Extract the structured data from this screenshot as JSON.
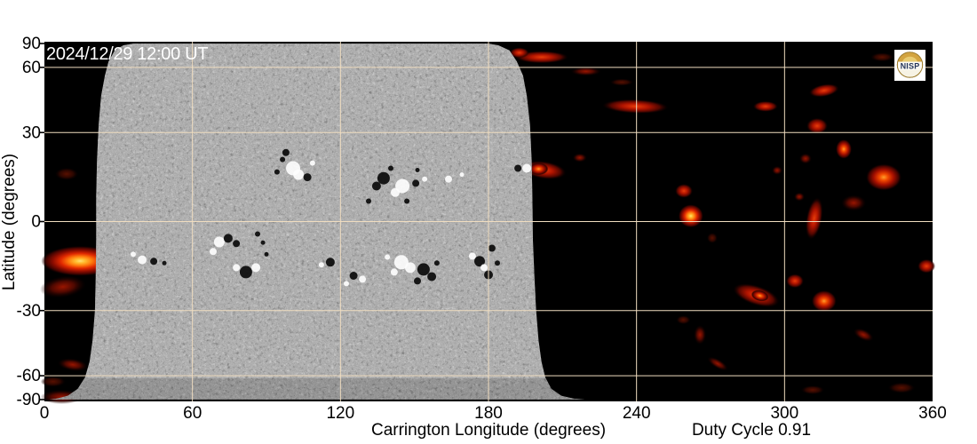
{
  "chart_data": {
    "type": "heatmap",
    "title": "2024/12/29 12:00 UT",
    "xlabel": "Carrington Longitude (degrees)",
    "ylabel": "Latitude (degrees)",
    "duty_cycle_label": "Duty Cycle 0.91",
    "xlim": [
      0,
      360
    ],
    "ylim": [
      -90,
      90
    ],
    "y_scale": "sine-latitude",
    "x_ticks": [
      0,
      60,
      120,
      180,
      240,
      300,
      360
    ],
    "y_ticks": [
      90,
      60,
      30,
      0,
      -30,
      -60,
      -90
    ],
    "x_gridlines": [
      60,
      120,
      180,
      240,
      300
    ],
    "y_gridlines": [
      60,
      30,
      0,
      -30,
      -60
    ],
    "grid_on": true,
    "legend": "none",
    "colors": {
      "grid": "#f0ddc0",
      "farside_bg": "#000000",
      "nearside_gray": "#9b9b9b",
      "text": "#000000",
      "title_text": "#ffffff",
      "hot_core": "#ffd24d",
      "hot_mid": "#e02800",
      "hot_edge": "#3c0300"
    },
    "logo": {
      "text": "NISP"
    },
    "nearside_mask": [
      [
        36,
        88
      ],
      [
        32,
        82
      ],
      [
        28.5,
        74
      ],
      [
        26,
        64
      ],
      [
        24.5,
        55
      ],
      [
        23,
        45
      ],
      [
        22,
        33
      ],
      [
        21.3,
        20
      ],
      [
        21,
        8
      ],
      [
        21,
        -6
      ],
      [
        20.8,
        -18
      ],
      [
        20.5,
        -30
      ],
      [
        19.5,
        -42
      ],
      [
        18.3,
        -52
      ],
      [
        16.5,
        -61
      ],
      [
        13.5,
        -70
      ],
      [
        9.5,
        -78
      ],
      [
        5,
        -84
      ],
      [
        2,
        -88
      ],
      [
        219,
        -88
      ],
      [
        214.5,
        -84
      ],
      [
        209.5,
        -78
      ],
      [
        205.5,
        -70
      ],
      [
        203,
        -61
      ],
      [
        201.5,
        -52
      ],
      [
        200.3,
        -42
      ],
      [
        199.3,
        -30
      ],
      [
        198.6,
        -18
      ],
      [
        198,
        -6
      ],
      [
        197.8,
        8
      ],
      [
        197.5,
        20
      ],
      [
        196.8,
        33
      ],
      [
        195.5,
        45
      ],
      [
        194,
        55
      ],
      [
        191.5,
        64
      ],
      [
        188.5,
        74
      ],
      [
        184,
        82
      ],
      [
        180,
        88
      ]
    ],
    "farside_hotspots": [
      [
        14.5,
        -12.8,
        44,
        17,
        0,
        "bright"
      ],
      [
        7.5,
        -21.5,
        26,
        12,
        -8,
        "dim"
      ],
      [
        9,
        15.5,
        13,
        7,
        0,
        "vdim"
      ],
      [
        11.5,
        -53.5,
        17,
        7,
        8,
        "dim"
      ],
      [
        7,
        -80,
        24,
        8,
        0,
        "dim"
      ],
      [
        3.5,
        -64,
        14,
        6,
        0,
        "vdim"
      ],
      [
        201.5,
        67.5,
        30,
        7,
        0,
        "med"
      ],
      [
        192.5,
        71.5,
        11,
        6,
        0,
        "med"
      ],
      [
        219.5,
        57.5,
        17,
        5,
        0,
        "dim"
      ],
      [
        234,
        51.5,
        13,
        4,
        0,
        "vdim"
      ],
      [
        239.5,
        40.3,
        37,
        8,
        2,
        "med"
      ],
      [
        217,
        21,
        8,
        5,
        0,
        "dim"
      ],
      [
        202.5,
        16.8,
        25,
        10,
        8,
        "med"
      ],
      [
        200.3,
        17.2,
        11,
        7,
        0,
        "bright2"
      ],
      [
        297,
        16.7,
        6,
        5,
        0,
        "dim"
      ],
      [
        292.3,
        40.3,
        14,
        6,
        0,
        "med"
      ],
      [
        316,
        47.4,
        17,
        7,
        -10,
        "med"
      ],
      [
        313.2,
        32.5,
        12,
        9,
        0,
        "med"
      ],
      [
        324,
        24,
        9,
        11,
        0,
        "bright2"
      ],
      [
        308.5,
        20.7,
        7,
        6,
        0,
        "dim"
      ],
      [
        340.2,
        14.4,
        20,
        15,
        0,
        "bright2"
      ],
      [
        328,
        6,
        14,
        9,
        0,
        "dim"
      ],
      [
        339.5,
        67.5,
        13,
        5,
        0,
        "vdim"
      ],
      [
        259.2,
        9.9,
        10,
        8,
        0,
        "med"
      ],
      [
        262,
        1.8,
        14,
        13,
        0,
        "bright"
      ],
      [
        270.7,
        -5.3,
        6,
        6,
        0,
        "vdim"
      ],
      [
        312,
        1,
        9,
        24,
        10,
        "med"
      ],
      [
        306,
        8,
        6,
        5,
        0,
        "dim"
      ],
      [
        288.5,
        -24.5,
        27,
        11,
        18,
        "med"
      ],
      [
        290,
        -24.6,
        10,
        6,
        14,
        "bright2"
      ],
      [
        304.2,
        -19.5,
        10,
        8,
        0,
        "med"
      ],
      [
        316,
        -26.5,
        14,
        12,
        0,
        "bright2"
      ],
      [
        357.5,
        -14.5,
        10,
        8,
        0,
        "med"
      ],
      [
        265.7,
        -39.5,
        7,
        11,
        0,
        "dim"
      ],
      [
        272.9,
        -53,
        13,
        5,
        30,
        "dim"
      ],
      [
        332,
        -39.5,
        12,
        6,
        25,
        "dim"
      ],
      [
        311.4,
        -71,
        13,
        5,
        0,
        "vdim"
      ],
      [
        347.4,
        -69,
        15,
        6,
        0,
        "vdim"
      ],
      [
        259,
        -33.5,
        8,
        5,
        0,
        "vdim"
      ]
    ],
    "magnetogram_regions": [
      [
        100.8,
        17.4,
        8,
        "w"
      ],
      [
        103,
        15.3,
        6,
        "w"
      ],
      [
        97.9,
        22.8,
        4,
        "b"
      ],
      [
        96.5,
        20.4,
        3,
        "b"
      ],
      [
        106.6,
        14.4,
        4.5,
        "b"
      ],
      [
        94.3,
        16.2,
        3,
        "b"
      ],
      [
        108.7,
        19.2,
        3,
        "w"
      ],
      [
        137.5,
        14.1,
        7,
        "b"
      ],
      [
        134.6,
        11.5,
        5,
        "b"
      ],
      [
        145.1,
        11.5,
        8,
        "w"
      ],
      [
        142.2,
        9.4,
        5,
        "w"
      ],
      [
        150.5,
        12.4,
        4,
        "b"
      ],
      [
        140.4,
        17.4,
        3,
        "b"
      ],
      [
        146.9,
        6.6,
        3,
        "b"
      ],
      [
        131.4,
        6.6,
        3,
        "b"
      ],
      [
        151.2,
        16.8,
        2.5,
        "b"
      ],
      [
        154.1,
        13.8,
        3,
        "w"
      ],
      [
        191.9,
        17.4,
        4,
        "b"
      ],
      [
        195.5,
        17.4,
        5,
        "w"
      ],
      [
        163.8,
        13.8,
        4,
        "w"
      ],
      [
        169.2,
        15.3,
        2.5,
        "w"
      ],
      [
        39.6,
        -12.4,
        5,
        "w"
      ],
      [
        44.3,
        -12.9,
        4,
        "b"
      ],
      [
        48.6,
        -13.5,
        2.5,
        "b"
      ],
      [
        36,
        -10.6,
        3,
        "w"
      ],
      [
        70.9,
        -6.6,
        6,
        "w"
      ],
      [
        74.5,
        -5.4,
        5,
        "b"
      ],
      [
        77.8,
        -7.1,
        4,
        "b"
      ],
      [
        81.7,
        -16.5,
        7,
        "b"
      ],
      [
        85.7,
        -15,
        5,
        "w"
      ],
      [
        77.8,
        -15,
        4,
        "w"
      ],
      [
        86.4,
        -4,
        3,
        "b"
      ],
      [
        88.6,
        -6.8,
        2.5,
        "b"
      ],
      [
        68.4,
        -9.7,
        4,
        "w"
      ],
      [
        90,
        -10.6,
        2.5,
        "b"
      ],
      [
        115.9,
        -13.2,
        5,
        "b"
      ],
      [
        112.3,
        -14.1,
        3,
        "w"
      ],
      [
        125.3,
        -17.7,
        4.5,
        "b"
      ],
      [
        128.9,
        -18.9,
        4,
        "w"
      ],
      [
        122.4,
        -20.4,
        3,
        "w"
      ],
      [
        144.7,
        -13.2,
        8,
        "w"
      ],
      [
        148.3,
        -15,
        6,
        "w"
      ],
      [
        153.7,
        -15.6,
        7,
        "b"
      ],
      [
        157,
        -18,
        5,
        "b"
      ],
      [
        151.2,
        -19.5,
        4,
        "b"
      ],
      [
        141.8,
        -16.5,
        4,
        "w"
      ],
      [
        159.1,
        -13.5,
        3,
        "b"
      ],
      [
        139,
        -11.5,
        3,
        "w"
      ],
      [
        176.4,
        -12.9,
        6,
        "b"
      ],
      [
        173.5,
        -11.2,
        4,
        "w"
      ],
      [
        180,
        -17.4,
        5,
        "b"
      ],
      [
        181.4,
        -8.6,
        4,
        "b"
      ],
      [
        178.2,
        -15,
        4,
        "w"
      ],
      [
        183.6,
        -13.5,
        3,
        "b"
      ]
    ]
  }
}
